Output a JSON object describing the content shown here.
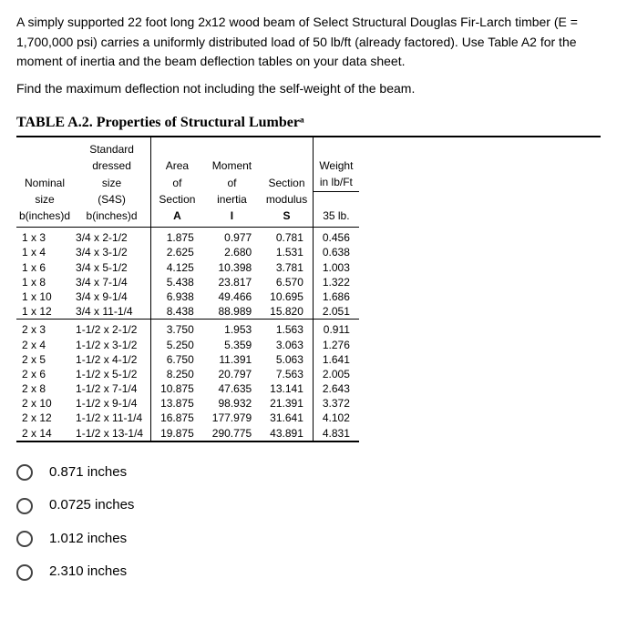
{
  "problem": {
    "p1": "A simply supported 22 foot long 2x12 wood beam of Select Structural Douglas Fir-Larch timber (E = 1,700,000 psi) carries a uniformly distributed load of 50 lb/ft (already factored). Use Table A2 for the moment of inertia and the beam deflection tables on your data sheet.",
    "p2": "Find the maximum deflection not including the self-weight of the beam."
  },
  "table": {
    "title": "TABLE A.2. Properties of Structural Lumberᵃ",
    "headers": {
      "c0a": "Nominal",
      "c0b": "size",
      "c0c": "b(inches)d",
      "c1a": "Standard",
      "c1b": "dressed",
      "c1c": "size",
      "c1d": "(S4S)",
      "c1e": "b(inches)d",
      "c2a": "Area",
      "c2b": "of",
      "c2c": "Section",
      "c2d": "A",
      "c3a": "Moment",
      "c3b": "of",
      "c3c": "inertia",
      "c3d": "I",
      "c4a": "Section",
      "c4b": "modulus",
      "c4c": "S",
      "c5a": "Weight",
      "c5b": "in lb/Ft",
      "c5c": "35 lb."
    },
    "rows": [
      [
        "1 x   3",
        "3/4  x   2-1/2",
        "1.875",
        "0.977",
        "0.781",
        "0.456"
      ],
      [
        "1 x   4",
        "3/4  x   3-1/2",
        "2.625",
        "2.680",
        "1.531",
        "0.638"
      ],
      [
        "1 x   6",
        "3/4  x   5-1/2",
        "4.125",
        "10.398",
        "3.781",
        "1.003"
      ],
      [
        "1 x   8",
        "3/4  x   7-1/4",
        "5.438",
        "23.817",
        "6.570",
        "1.322"
      ],
      [
        "1 x 10",
        "3/4  x   9-1/4",
        "6.938",
        "49.466",
        "10.695",
        "1.686"
      ],
      [
        "1 x 12",
        "3/4  x 11-1/4",
        "8.438",
        "88.989",
        "15.820",
        "2.051"
      ],
      [
        "2 x   3",
        "1-1/2 x   2-1/2",
        "3.750",
        "1.953",
        "1.563",
        "0.911"
      ],
      [
        "2 x   4",
        "1-1/2 x   3-1/2",
        "5.250",
        "5.359",
        "3.063",
        "1.276"
      ],
      [
        "2 x   5",
        "1-1/2 x   4-1/2",
        "6.750",
        "11.391",
        "5.063",
        "1.641"
      ],
      [
        "2 x   6",
        "1-1/2 x   5-1/2",
        "8.250",
        "20.797",
        "7.563",
        "2.005"
      ],
      [
        "2 x   8",
        "1-1/2 x   7-1/4",
        "10.875",
        "47.635",
        "13.141",
        "2.643"
      ],
      [
        "2 x 10",
        "1-1/2 x   9-1/4",
        "13.875",
        "98.932",
        "21.391",
        "3.372"
      ],
      [
        "2 x 12",
        "1-1/2 x 11-1/4",
        "16.875",
        "177.979",
        "31.641",
        "4.102"
      ],
      [
        "2 x 14",
        "1-1/2 x 13-1/4",
        "19.875",
        "290.775",
        "43.891",
        "4.831"
      ]
    ],
    "group_break_index": 6
  },
  "options": {
    "a": "0.871 inches",
    "b": "0.0725 inches",
    "c": "1.012 inches",
    "d": "2.310 inches"
  },
  "style": {
    "bg": "#ffffff",
    "text": "#000000",
    "base_font_size": 13,
    "table_font_size": 12,
    "title_font_size": 16,
    "option_font_size": 15,
    "radio_border": "#444444"
  }
}
